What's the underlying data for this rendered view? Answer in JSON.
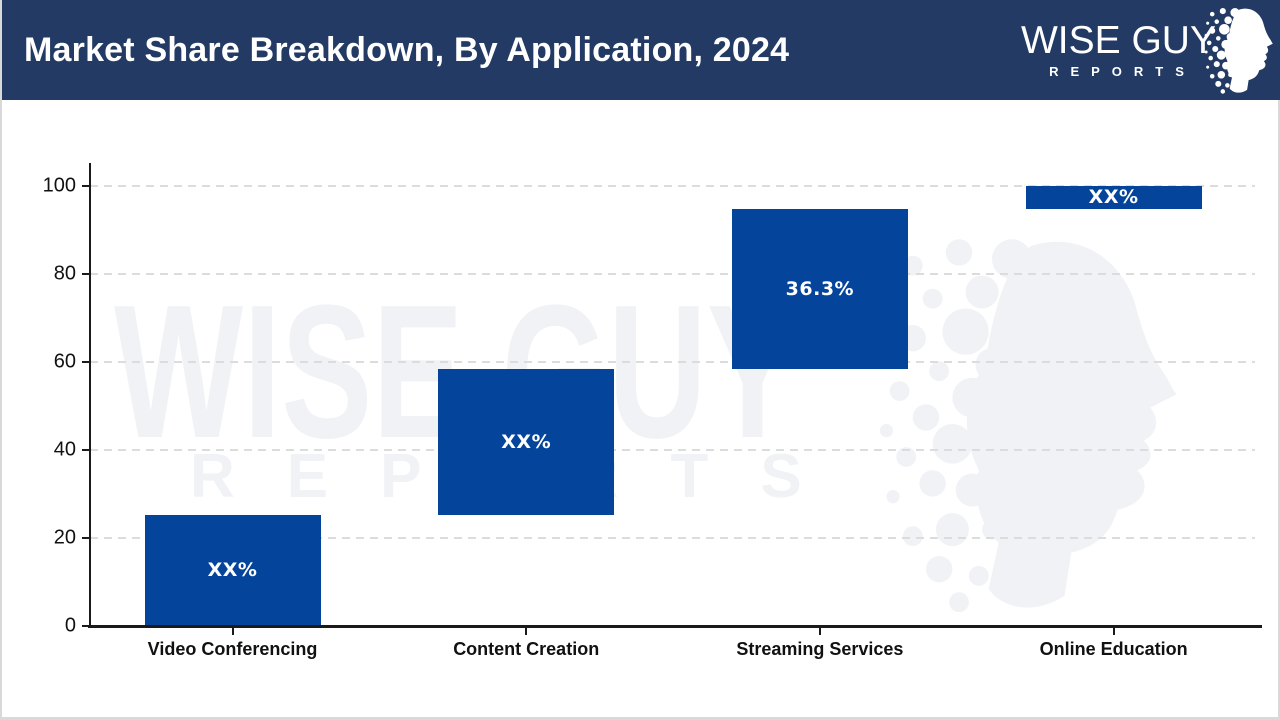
{
  "header": {
    "title": "Market Share Breakdown, By Application, 2024",
    "logo": {
      "line1": "WISE GUY",
      "line2": "REPORTS"
    }
  },
  "watermark": {
    "line1": "WISE GUY",
    "line2": "REPORTS"
  },
  "colors": {
    "header_bg": "#223A64",
    "bar": "#05449B",
    "axis": "#1A1A1A",
    "grid": "#DCDCDC",
    "text": "#111111",
    "watermark": "#F1F2F5",
    "border": "#D9D9D9"
  },
  "chart_data": {
    "type": "bar",
    "variant": "waterfall-floating-bars",
    "title": "Market Share Breakdown, By Application, 2024",
    "xlabel": "",
    "ylabel": "",
    "ylim": [
      0,
      100
    ],
    "yticks": [
      0,
      20,
      40,
      60,
      80,
      100
    ],
    "grid": "horizontal-dashed",
    "legend": "none",
    "categories": [
      "Video Conferencing",
      "Content Creation",
      "Streaming Services",
      "Online Education"
    ],
    "segments": [
      {
        "category": "Video Conferencing",
        "start": 0,
        "end": 25.2,
        "value_label": "XX%"
      },
      {
        "category": "Content Creation",
        "start": 25.2,
        "end": 58.4,
        "value_label": "XX%"
      },
      {
        "category": "Streaming Services",
        "start": 58.4,
        "end": 94.7,
        "value_label": "36.3%"
      },
      {
        "category": "Online Education",
        "start": 94.7,
        "end": 100,
        "value_label": "XX%"
      }
    ]
  }
}
